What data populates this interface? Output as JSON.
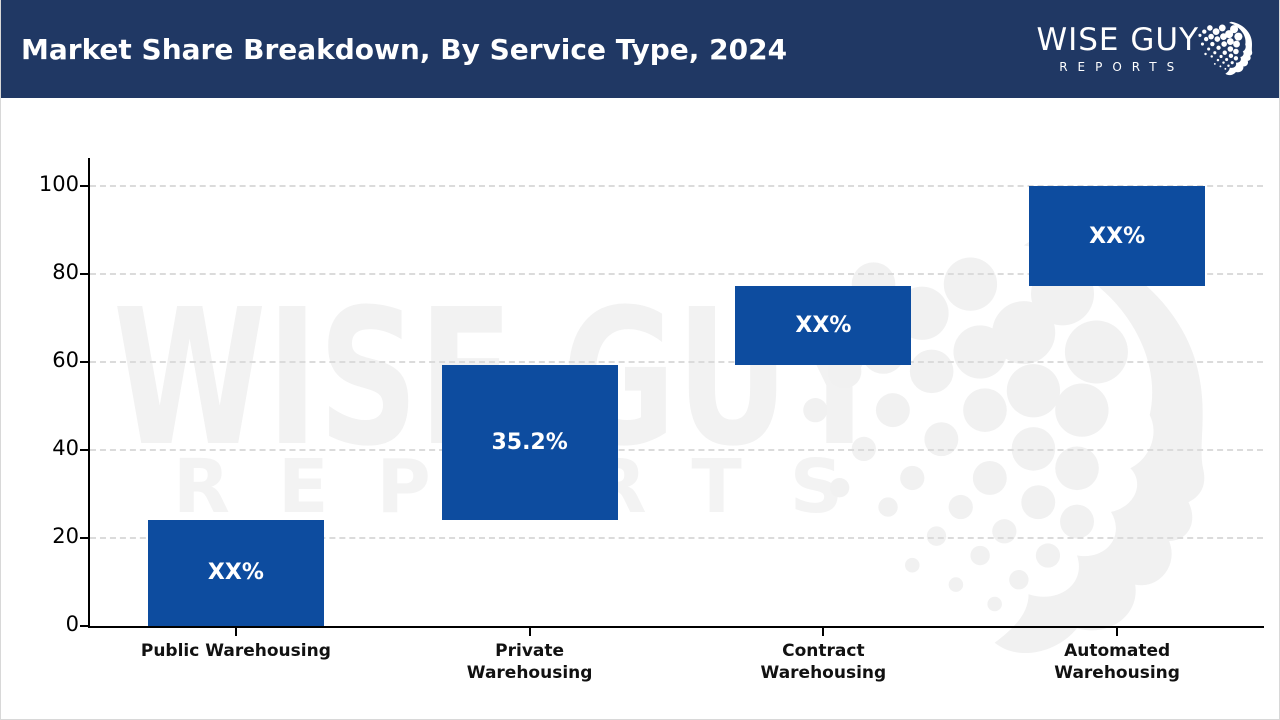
{
  "header": {
    "title": "Market Share Breakdown, By Service Type, 2024",
    "logo": {
      "main": "WISE GUY",
      "sub": "REPORTS"
    }
  },
  "watermark": {
    "line1": "WISE GUY",
    "line2": "REPORTS"
  },
  "chart_data": {
    "type": "bar",
    "variant": "waterfall",
    "title": "Market Share Breakdown, By Service Type, 2024",
    "categories": [
      "Public Warehousing",
      "Private Warehousing",
      "Contract Warehousing",
      "Automated Warehousing"
    ],
    "category_label_lines": [
      [
        "Public Warehousing"
      ],
      [
        "Private",
        "Warehousing"
      ],
      [
        "Contract",
        "Warehousing"
      ],
      [
        "Automated",
        "Warehousing"
      ]
    ],
    "segments": [
      {
        "category": "Public Warehousing",
        "start": 0,
        "end": 24.2,
        "height": 24.2,
        "label": "XX%"
      },
      {
        "category": "Private Warehousing",
        "start": 24.2,
        "end": 59.4,
        "height": 35.2,
        "label": "35.2%"
      },
      {
        "category": "Contract Warehousing",
        "start": 59.4,
        "end": 77.2,
        "height": 17.8,
        "label": "XX%"
      },
      {
        "category": "Automated Warehousing",
        "start": 77.2,
        "end": 100,
        "height": 22.8,
        "label": "XX%"
      }
    ],
    "sums_to": 100,
    "ylim": [
      0,
      100
    ],
    "yticks": [
      0,
      20,
      40,
      60,
      80,
      100
    ],
    "xlabel": "",
    "ylabel": "",
    "grid": "horizontal-dashed",
    "legend": "none",
    "colors": {
      "bar": "#0D4C9F",
      "bar_label": "#FFFFFF",
      "axis": "#000000",
      "gridline": "#DBDBDB",
      "header_bg": "#203864",
      "header_text": "#FFFFFF",
      "watermark": "#F2F2F2"
    }
  }
}
